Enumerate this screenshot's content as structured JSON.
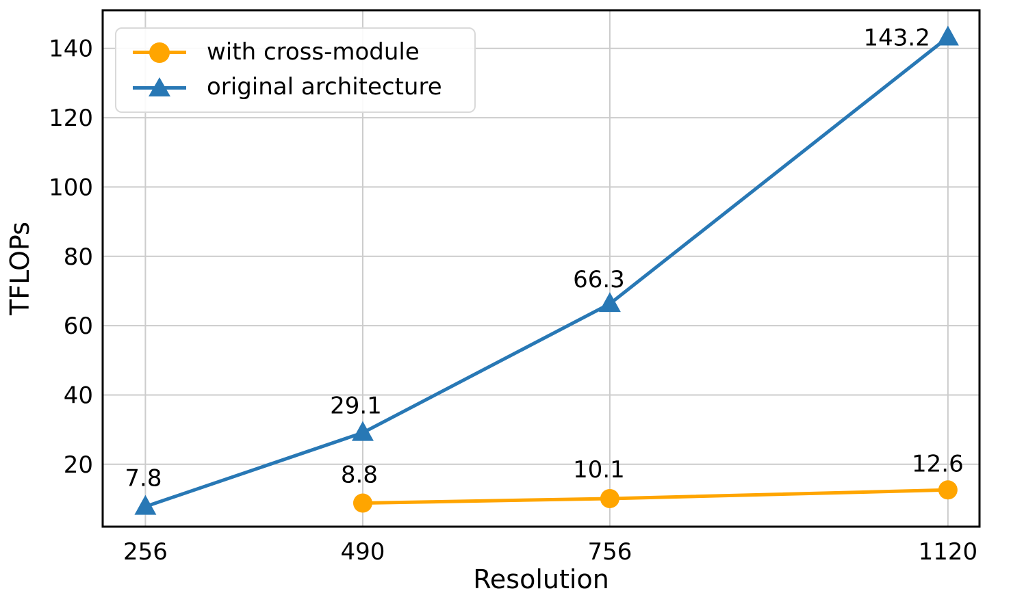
{
  "figure": {
    "background_color": "#ffffff",
    "spine_color": "#000000",
    "grid_color": "#cccccc",
    "text_color": "#000000"
  },
  "chart_data": {
    "type": "line",
    "title": "",
    "xlabel": "Resolution",
    "ylabel": "TFLOPs",
    "grid": true,
    "legend_position": "upper left",
    "xlim": [
      210,
      1154
    ],
    "ylim": [
      2,
      151
    ],
    "x_tick_values": [
      256,
      490,
      756,
      1120
    ],
    "x_tick_labels": [
      "256",
      "490",
      "756",
      "1120"
    ],
    "y_tick_values": [
      20,
      40,
      60,
      80,
      100,
      120,
      140
    ],
    "y_tick_labels": [
      "20",
      "40",
      "60",
      "80",
      "100",
      "120",
      "140"
    ],
    "series": [
      {
        "name": "with cross-module",
        "color": "#ffa500",
        "marker": "circle",
        "points": [
          {
            "x": 490,
            "y": 8.8,
            "label": "8.8",
            "label_dx": -5,
            "label_dy": -30,
            "label_anchor": "middle"
          },
          {
            "x": 756,
            "y": 10.1,
            "label": "10.1",
            "label_dx": -16,
            "label_dy": -31,
            "label_anchor": "middle"
          },
          {
            "x": 1120,
            "y": 12.6,
            "label": "12.6",
            "label_dx": -15,
            "label_dy": -27,
            "label_anchor": "middle"
          }
        ]
      },
      {
        "name": "original architecture",
        "color": "#2878b5",
        "marker": "triangle",
        "points": [
          {
            "x": 256,
            "y": 7.8,
            "label": "7.8",
            "label_dx": -3,
            "label_dy": -30,
            "label_anchor": "middle"
          },
          {
            "x": 490,
            "y": 29.1,
            "label": "29.1",
            "label_dx": -10,
            "label_dy": -28,
            "label_anchor": "middle"
          },
          {
            "x": 756,
            "y": 66.3,
            "label": "66.3",
            "label_dx": -16,
            "label_dy": -24,
            "label_anchor": "middle"
          },
          {
            "x": 1120,
            "y": 143.2,
            "label": "143.2",
            "label_dx": -26,
            "label_dy": 12,
            "label_anchor": "end"
          }
        ]
      }
    ]
  }
}
